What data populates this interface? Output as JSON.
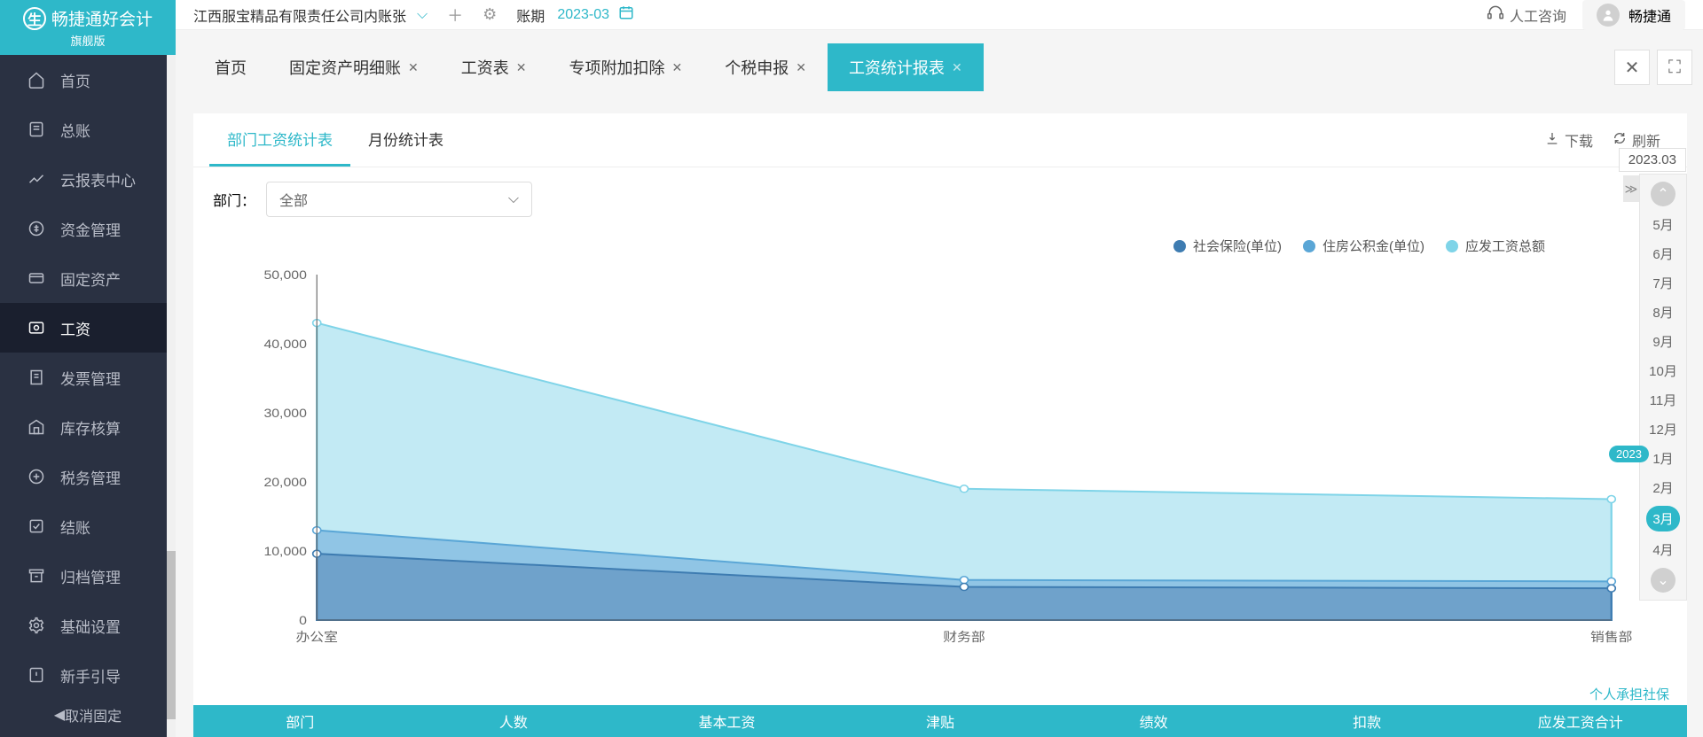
{
  "brand": {
    "name": "畅捷通好会计",
    "edition": "旗舰版",
    "logo_glyph": "生"
  },
  "sidebar": {
    "items": [
      {
        "label": "首页",
        "icon": "home"
      },
      {
        "label": "总账",
        "icon": "ledger"
      },
      {
        "label": "云报表中心",
        "icon": "report"
      },
      {
        "label": "资金管理",
        "icon": "fund"
      },
      {
        "label": "固定资产",
        "icon": "asset"
      },
      {
        "label": "工资",
        "icon": "salary"
      },
      {
        "label": "发票管理",
        "icon": "invoice"
      },
      {
        "label": "库存核算",
        "icon": "inventory"
      },
      {
        "label": "税务管理",
        "icon": "tax"
      },
      {
        "label": "结账",
        "icon": "close"
      },
      {
        "label": "归档管理",
        "icon": "archive"
      },
      {
        "label": "基础设置",
        "icon": "settings"
      },
      {
        "label": "新手引导",
        "icon": "guide"
      }
    ],
    "active_index": 5,
    "collapse_label": "取消固定"
  },
  "topbar": {
    "company": "江西服宝精品有限责任公司内账张",
    "period_label": "账期",
    "period_value": "2023-03",
    "help_label": "人工咨询",
    "username": "畅捷通"
  },
  "tabs": {
    "items": [
      {
        "label": "首页",
        "closable": false
      },
      {
        "label": "固定资产明细账",
        "closable": true
      },
      {
        "label": "工资表",
        "closable": true
      },
      {
        "label": "专项附加扣除",
        "closable": true
      },
      {
        "label": "个税申报",
        "closable": true
      },
      {
        "label": "工资统计报表",
        "closable": true
      }
    ],
    "active_index": 5
  },
  "subtabs": {
    "items": [
      "部门工资统计表",
      "月份统计表"
    ],
    "active_index": 0,
    "download_label": "下载",
    "refresh_label": "刷新"
  },
  "filter": {
    "dept_label": "部门：",
    "dept_value": "全部"
  },
  "chart": {
    "type": "area",
    "categories": [
      "办公室",
      "财务部",
      "销售部"
    ],
    "series": [
      {
        "name": "社会保险(单位)",
        "color": "#3e7cb1",
        "fill": "#6a9bc7",
        "fill_opacity": 0.85,
        "values": [
          9600,
          4800,
          4600
        ]
      },
      {
        "name": "住房公积金(单位)",
        "color": "#5aa6d6",
        "fill": "#7fb8e0",
        "fill_opacity": 0.75,
        "values": [
          13000,
          5800,
          5600
        ]
      },
      {
        "name": "应发工资总额",
        "color": "#7fd4e8",
        "fill": "#a8e1f0",
        "fill_opacity": 0.7,
        "values": [
          43000,
          19000,
          17500
        ]
      }
    ],
    "ylim": [
      0,
      50000
    ],
    "ytick_step": 10000,
    "yticks": [
      "0",
      "10,000",
      "20,000",
      "30,000",
      "40,000",
      "50,000"
    ],
    "axis_color": "#666666",
    "grid_color": "#e0e0e0",
    "background_color": "#ffffff",
    "label_fontsize": 14,
    "legend_fontsize": 15,
    "marker_style": "hollow-circle",
    "marker_radius": 4,
    "line_width": 2,
    "extra_markers": [
      {
        "cx_ratio": 1.035,
        "value": 17500,
        "color": "#7fd4e8"
      },
      {
        "cx_ratio": 1.035,
        "value": 5600,
        "color": "#5aa6d6"
      }
    ]
  },
  "table": {
    "columns": [
      "部门",
      "人数",
      "基本工资",
      "津贴",
      "绩效",
      "扣款",
      "应发工资合计"
    ],
    "extra_label": "个人承担社保"
  },
  "month_picker": {
    "header": "2023.03",
    "year_badge": "2023",
    "months": [
      "5月",
      "6月",
      "7月",
      "8月",
      "9月",
      "10月",
      "11月",
      "12月",
      "1月",
      "2月",
      "3月",
      "4月"
    ],
    "selected_index": 10,
    "year_badge_at": 8
  }
}
